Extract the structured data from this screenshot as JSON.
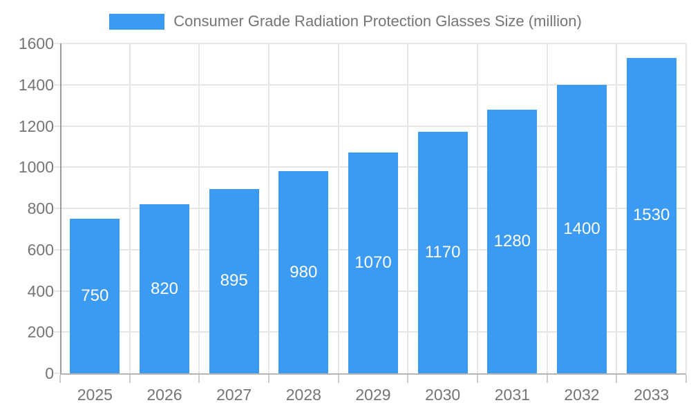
{
  "legend": {
    "label": "Consumer Grade Radiation Protection Glasses Size (million)"
  },
  "chart_data": {
    "type": "bar",
    "title": "Consumer Grade Radiation Protection Glasses Size (million)",
    "categories": [
      "2025",
      "2026",
      "2027",
      "2028",
      "2029",
      "2030",
      "2031",
      "2032",
      "2033"
    ],
    "values": [
      750,
      820,
      895,
      980,
      1070,
      1170,
      1280,
      1400,
      1530
    ],
    "xlabel": "",
    "ylabel": "",
    "ylim": [
      0,
      1600
    ],
    "ytick_step": 200,
    "grid": true,
    "legend_position": "top-center",
    "colors": {
      "bar": "#3B9AF2",
      "bar_label": "#FFFFFF",
      "axis_text": "#757575",
      "gridline": "#E6E6E6",
      "axis_line_y": "#9A9A9A",
      "axis_line_x": "#B5B5B5",
      "tick": "#CCCCCC"
    }
  }
}
